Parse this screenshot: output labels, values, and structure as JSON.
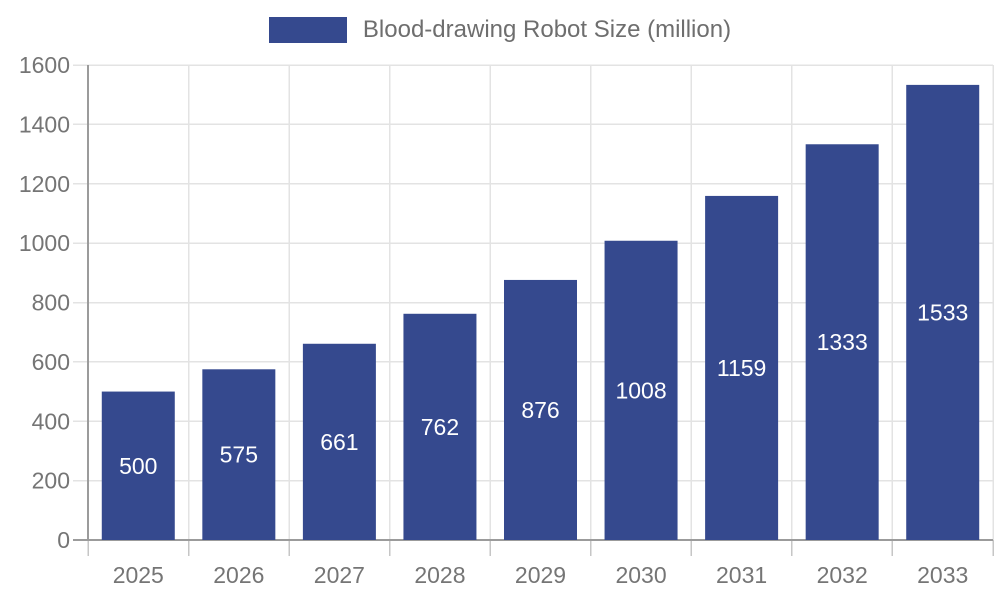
{
  "chart_data": {
    "type": "bar",
    "title": "Blood-drawing Robot Size (million)",
    "legend": {
      "label": "Blood-drawing Robot Size (million)",
      "position": "top-center"
    },
    "categories": [
      "2025",
      "2026",
      "2027",
      "2028",
      "2029",
      "2030",
      "2031",
      "2032",
      "2033"
    ],
    "values": [
      500,
      575,
      661,
      762,
      876,
      1008,
      1159,
      1333,
      1533
    ],
    "xlabel": "",
    "ylabel": "",
    "ylim": [
      0,
      1600
    ],
    "ytick_step": 200,
    "yticks": [
      0,
      200,
      400,
      600,
      800,
      1000,
      1200,
      1400,
      1600
    ],
    "grid": true,
    "bar_value_labels": [
      "500",
      "575",
      "661",
      "762",
      "876",
      "1008",
      "1159",
      "1333",
      "1533"
    ],
    "bar_label_position": "inside-center"
  },
  "colors": {
    "bar": "#35498E",
    "grid": "#E3E3E3",
    "axis": "#9B9B9B",
    "tick": "#C6C6C6",
    "tick_text": "#757575",
    "legend_text": "#6E6E6E",
    "bar_label_text": "#FFFFFF",
    "background": "#FFFFFF"
  }
}
